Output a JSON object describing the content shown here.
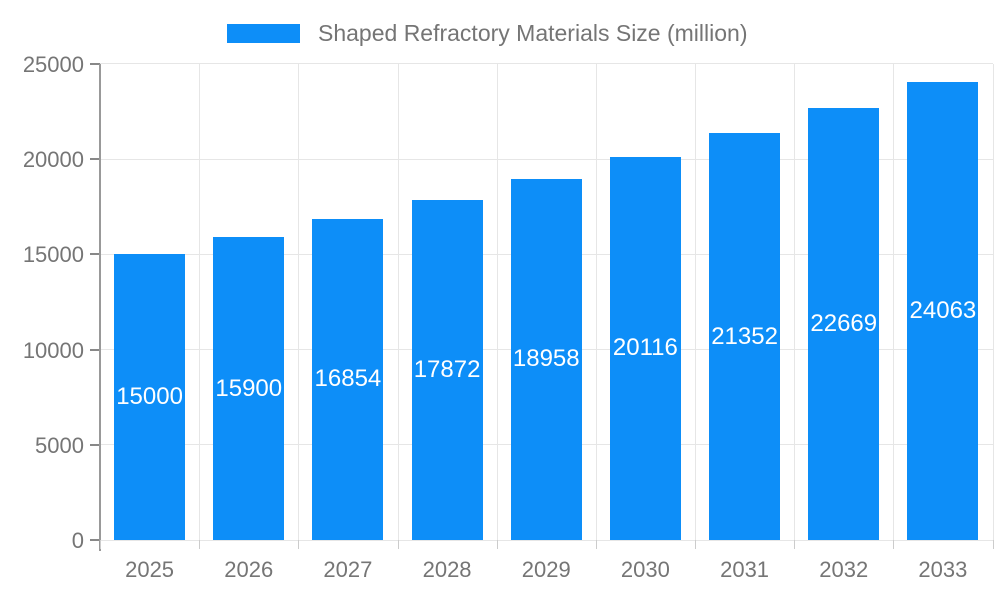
{
  "legend": {
    "label": "Shaped Refractory Materials Size (million)"
  },
  "chart_data": {
    "type": "bar",
    "title": "",
    "series_name": "Shaped Refractory Materials Size (million)",
    "categories": [
      "2025",
      "2026",
      "2027",
      "2028",
      "2029",
      "2030",
      "2031",
      "2032",
      "2033"
    ],
    "values": [
      15000,
      15900,
      16854,
      17872,
      18958,
      20116,
      21352,
      22669,
      24063
    ],
    "xlabel": "",
    "ylabel": "",
    "ylim": [
      0,
      25000
    ],
    "yticks": [
      0,
      5000,
      10000,
      15000,
      20000,
      25000
    ],
    "grid": true,
    "legend_position": "top",
    "colors": {
      "bar": "#0D8EF8",
      "gridline": "#e6e6e6",
      "axis_line": "#999999",
      "axis_text": "#757575",
      "value_label": "#ffffff"
    }
  }
}
